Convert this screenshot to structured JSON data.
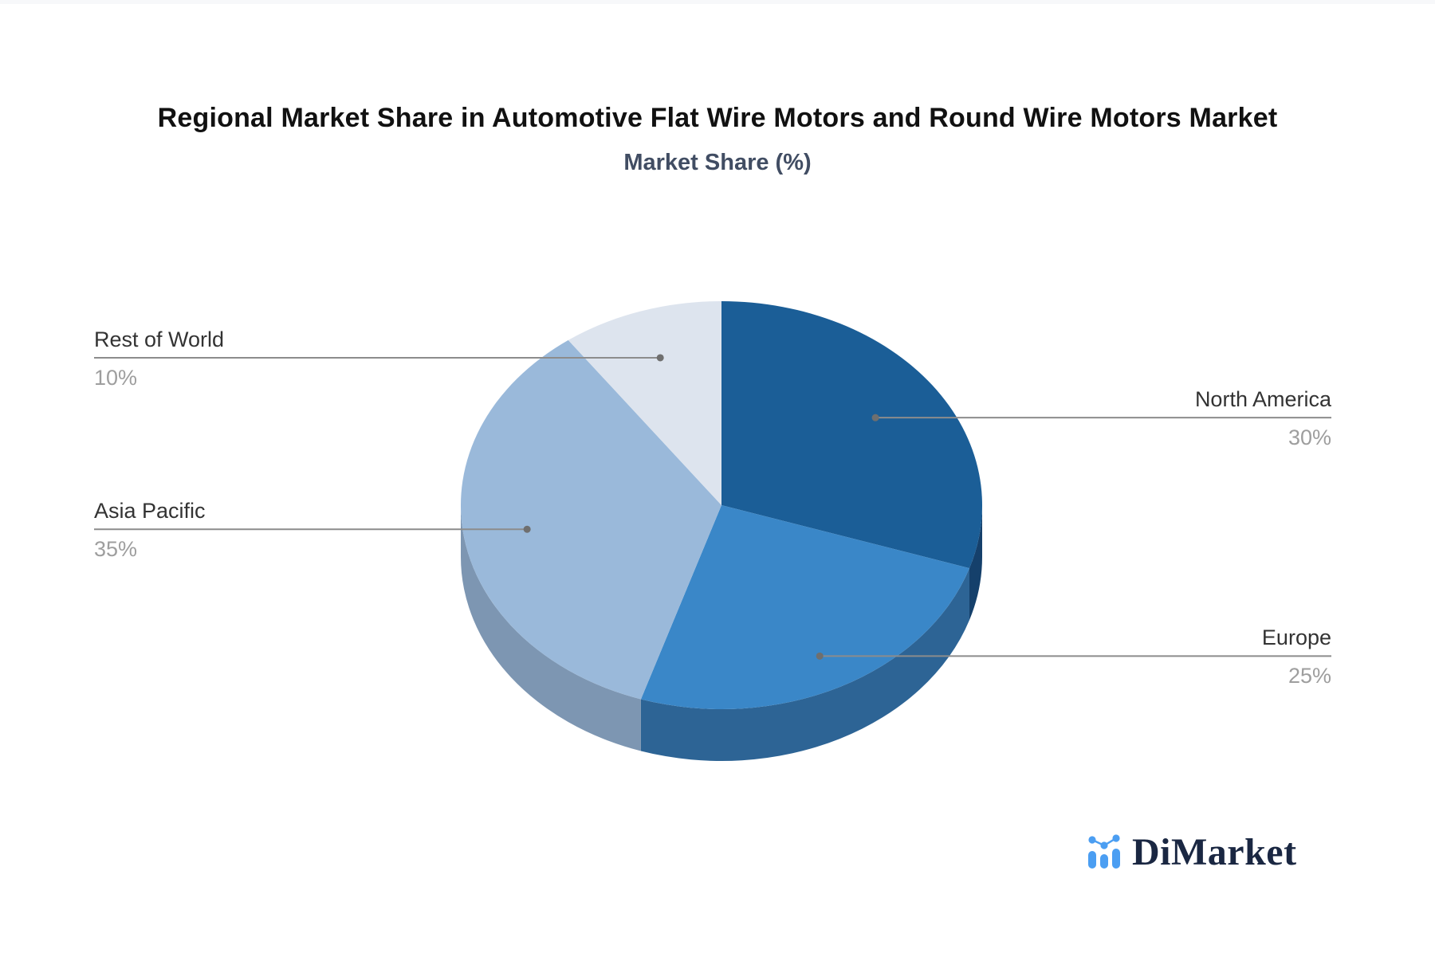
{
  "page": {
    "background": "#ffffff",
    "top_strip_color": "#f7f8fa"
  },
  "header": {
    "title": "Regional Market Share in Automotive Flat Wire Motors and Round Wire Motors Market",
    "subtitle": "Market Share (%)"
  },
  "chart_data": {
    "type": "pie",
    "style": "3d",
    "title": "Regional Market Share in Automotive Flat Wire Motors and Round Wire Motors Market",
    "subtitle": "Market Share (%)",
    "unit": "%",
    "categories": [
      "North America",
      "Europe",
      "Asia Pacific",
      "Rest of World"
    ],
    "values": [
      30,
      25,
      35,
      10
    ],
    "percent_labels": [
      "30%",
      "25%",
      "35%",
      "10%"
    ],
    "colors": [
      "#1b5e97",
      "#3a87c8",
      "#9ab9da",
      "#dde4ee"
    ],
    "side_colors": [
      "#15406b",
      "#2d6495",
      "#7d96b2",
      "#b9c3d3"
    ],
    "start_angle": -90,
    "direction": "clockwise",
    "legend": "none",
    "label_style": {
      "line_color": "#8c8c8c",
      "dot_color": "#6f6f6f",
      "name_color": "#333333",
      "percent_color": "#9e9e9e"
    }
  },
  "logo": {
    "text": "DiMarket",
    "icon": "bar-chart-trend-icon",
    "text_color": "#1a2742",
    "icon_color": "#4b9ef2"
  }
}
